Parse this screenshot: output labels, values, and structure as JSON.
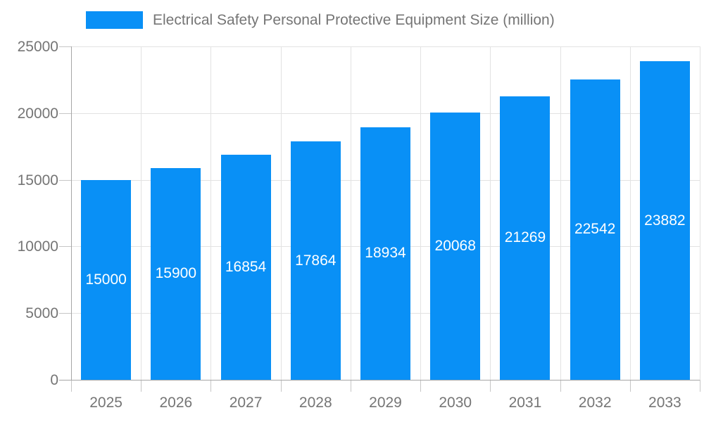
{
  "chart_data": {
    "type": "bar",
    "title": "Electrical Safety Personal Protective Equipment Size (million)",
    "legend": [
      "Electrical Safety Personal Protective Equipment Size (million)"
    ],
    "legend_position": "top",
    "categories": [
      "2025",
      "2026",
      "2027",
      "2028",
      "2029",
      "2030",
      "2031",
      "2032",
      "2033"
    ],
    "series": [
      {
        "name": "Electrical Safety Personal Protective Equipment Size (million)",
        "values": [
          15000,
          15900,
          16854,
          17864,
          18934,
          20068,
          21269,
          22542,
          23882
        ],
        "color": "#0990F6"
      }
    ],
    "xlabel": "",
    "ylabel": "",
    "ylim": [
      0,
      25000
    ],
    "yticks": [
      0,
      5000,
      10000,
      15000,
      20000,
      25000
    ],
    "grid": true,
    "data_labels_position": "inside-center"
  },
  "colors": {
    "bar": "#0990F6",
    "axis_text": "#757575",
    "value_label_text": "#ffffff",
    "gridline": "#e2e2e2",
    "axis_line": "#a6a6a6",
    "tick": "#c6c6c6",
    "background": "#ffffff"
  }
}
